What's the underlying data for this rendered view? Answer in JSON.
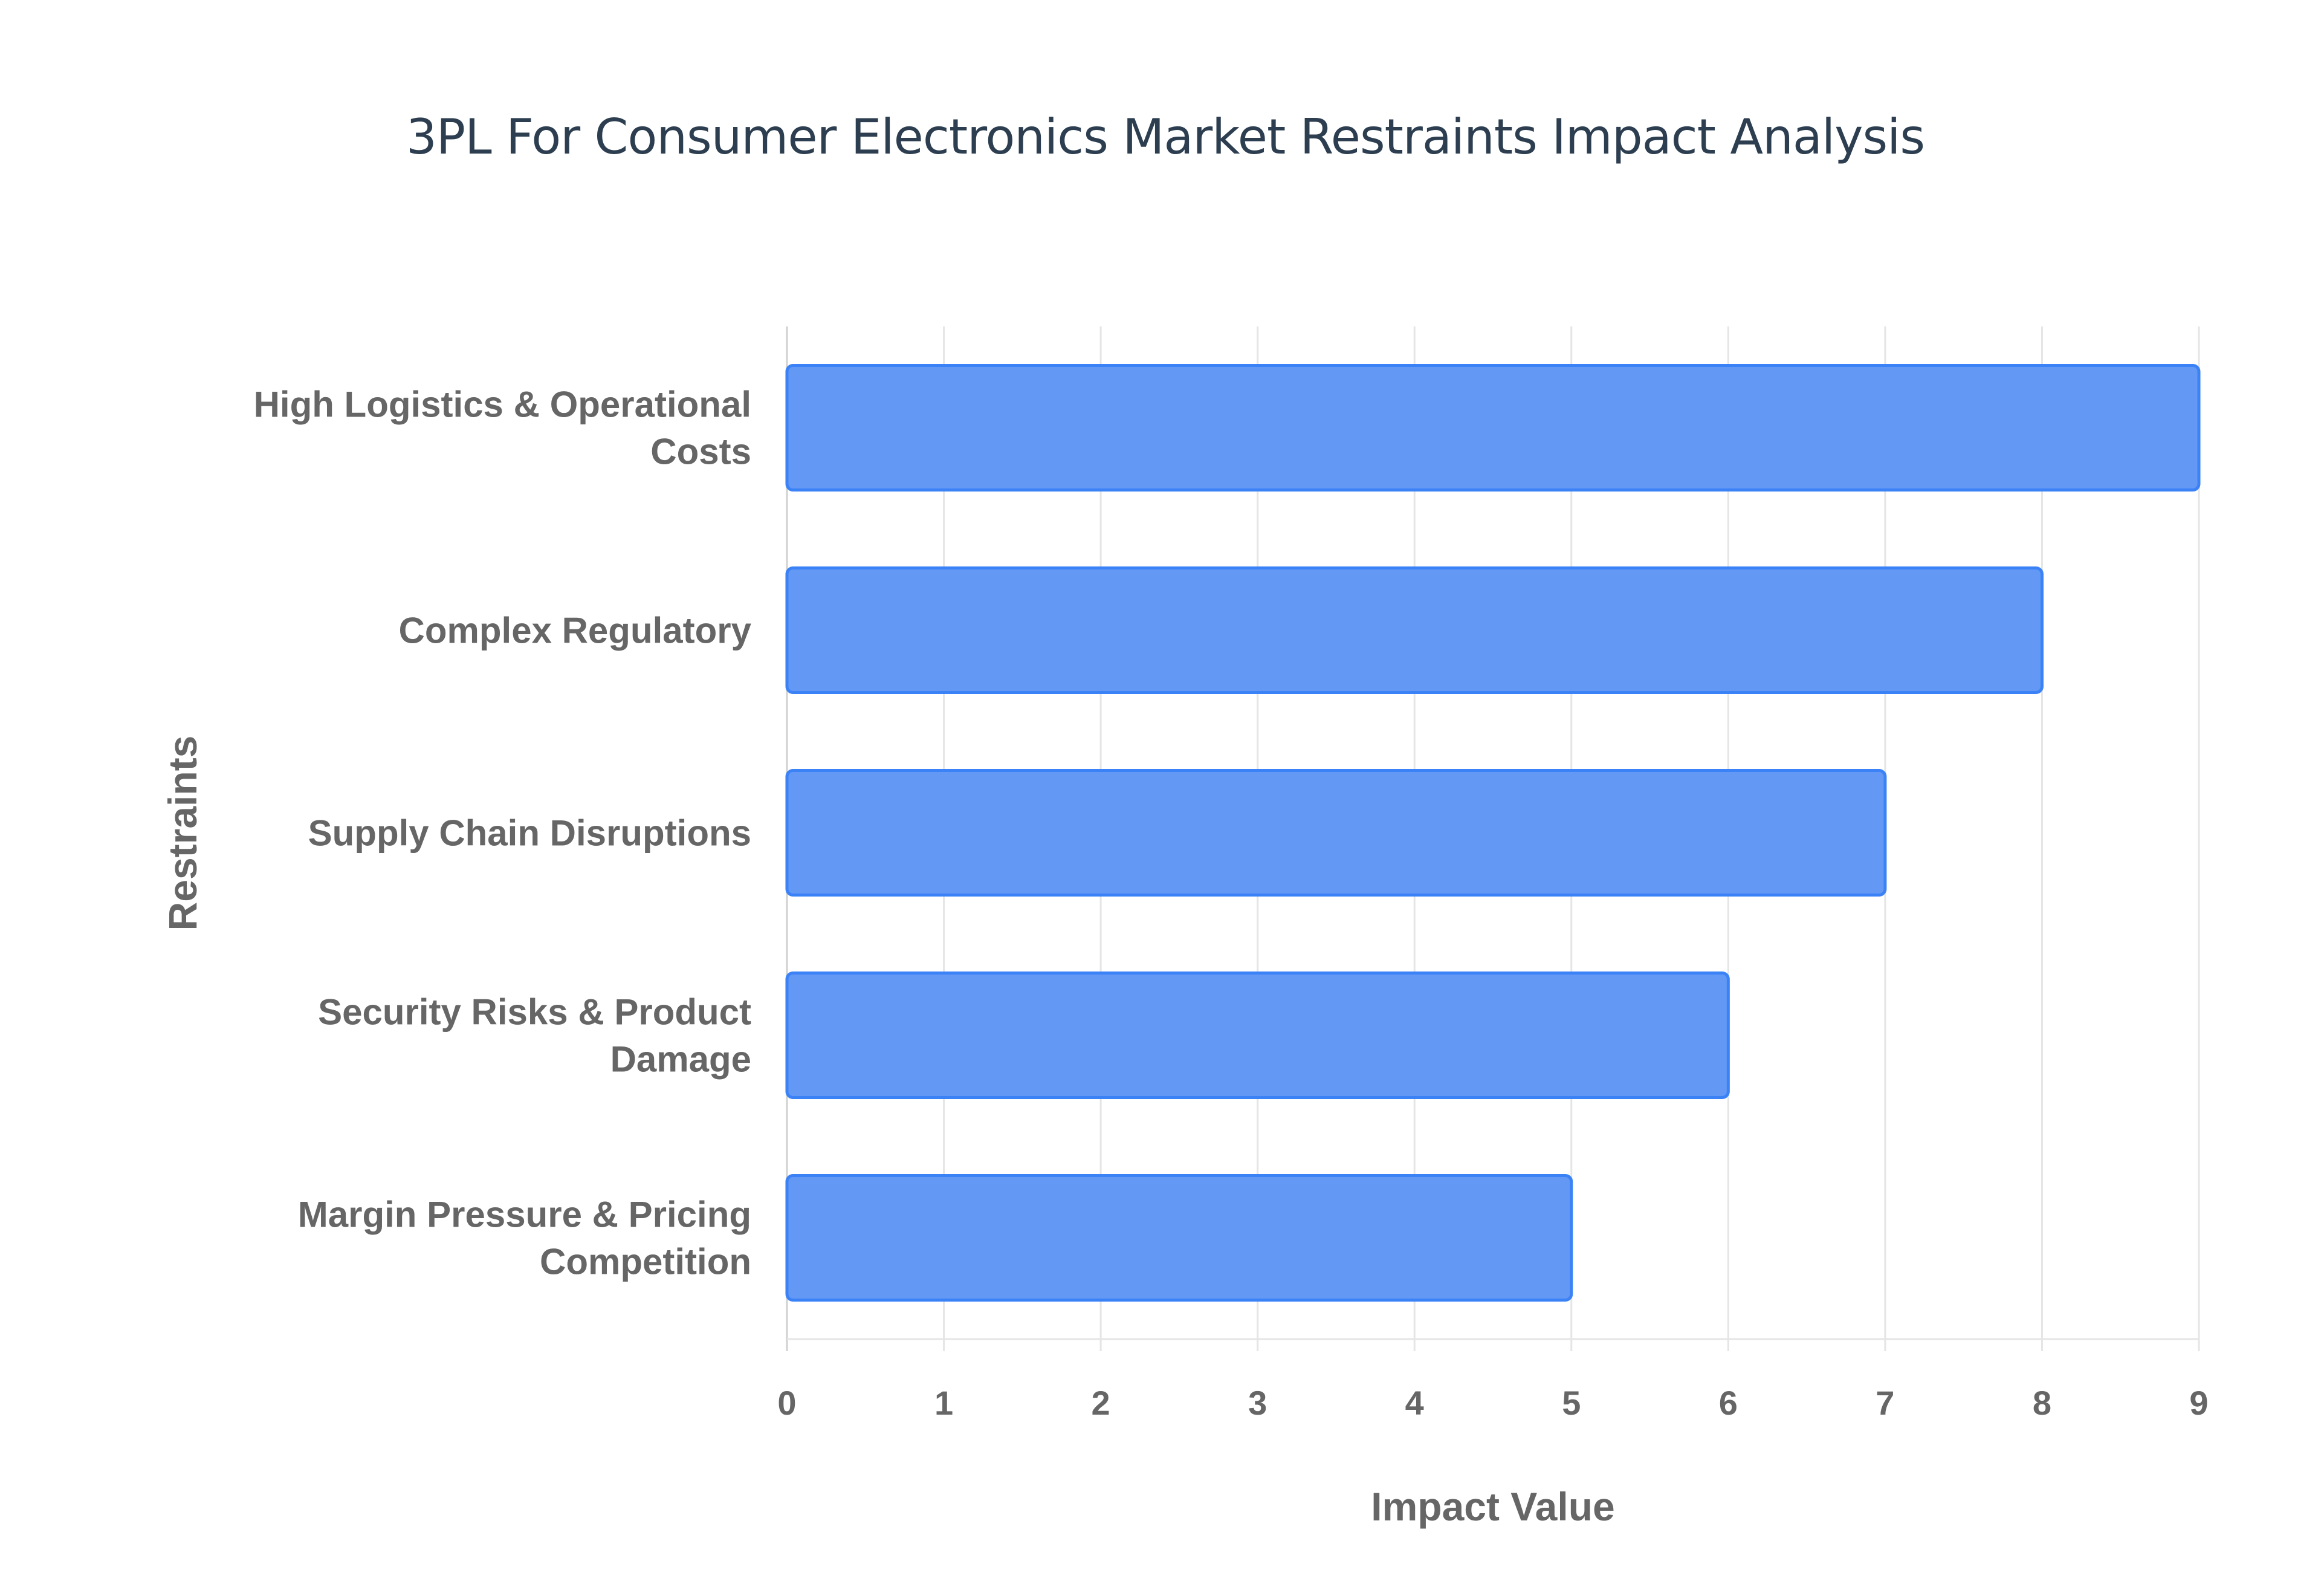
{
  "chart_data": {
    "type": "bar",
    "orientation": "horizontal",
    "title": "3PL For Consumer Electronics Market Restraints Impact Analysis",
    "xlabel": "Impact Value",
    "ylabel": "Restraints",
    "categories": [
      [
        "High Logistics & Operational",
        "Costs"
      ],
      [
        "Complex Regulatory"
      ],
      [
        "Supply Chain Disruptions"
      ],
      [
        "Security Risks & Product",
        "Damage"
      ],
      [
        "Margin Pressure & Pricing",
        "Competition"
      ]
    ],
    "values": [
      9,
      8,
      7,
      6,
      5
    ],
    "xlim": [
      0,
      9
    ],
    "xticks": [
      "0",
      "1",
      "2",
      "3",
      "4",
      "5",
      "6",
      "7",
      "8",
      "9"
    ],
    "grid": true,
    "legend": "none",
    "colors": {
      "bar_fill": "#6399f5",
      "bar_border": "#3b82f6",
      "grid": "#e5e5e5",
      "text": "#666666",
      "title": "#2c3e50"
    }
  }
}
